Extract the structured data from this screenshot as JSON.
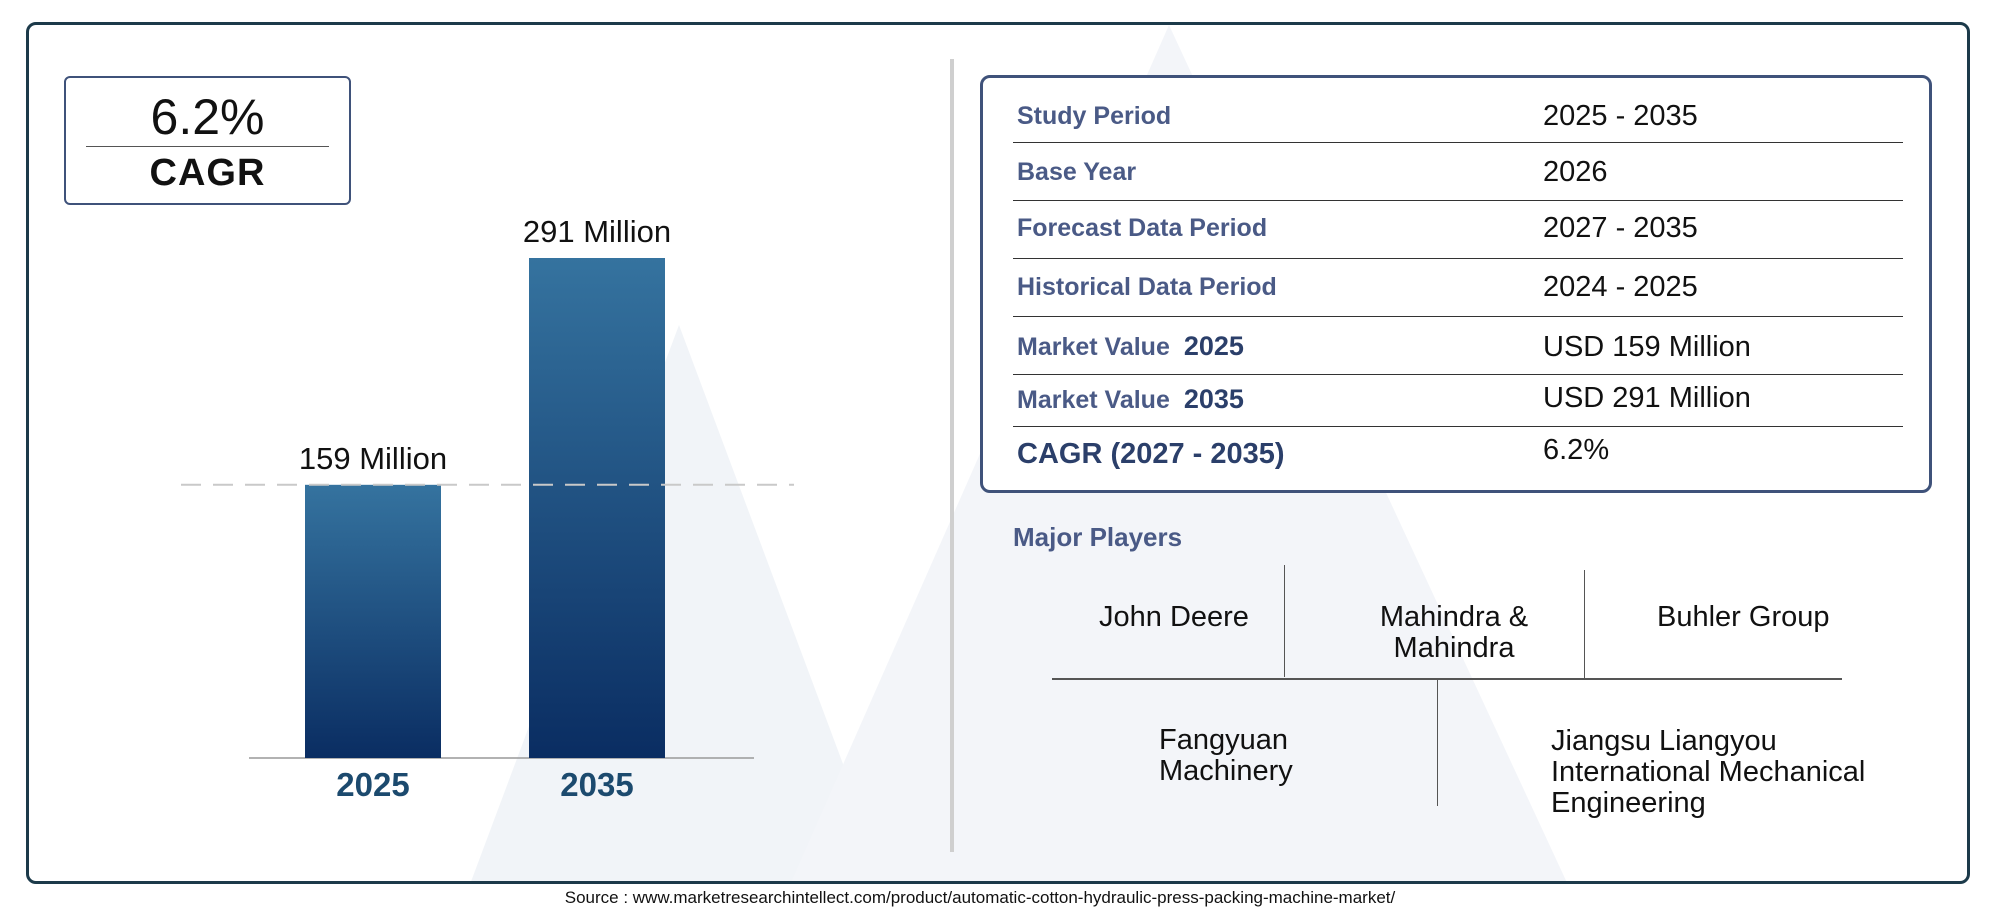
{
  "colors": {
    "border": "#1c3a4a",
    "accent": "#3f527a",
    "bar_top": "#35739f",
    "bar_bottom": "#0a2d62",
    "year_label": "#1c4a6e"
  },
  "cagr": {
    "value": "6.2%",
    "label": "CAGR"
  },
  "chart_data": {
    "type": "bar",
    "categories": [
      "2025",
      "2035"
    ],
    "values": [
      159,
      291
    ],
    "value_labels": [
      "159 Million",
      "291 Million"
    ],
    "reference_line": 159,
    "ylim": [
      0,
      291
    ],
    "title": "",
    "xlabel": "",
    "ylabel": ""
  },
  "info_table": [
    {
      "label": "Study Period",
      "value": "2025 - 2035"
    },
    {
      "label": "Base Year",
      "value": "2026"
    },
    {
      "label": "Forecast Data Period",
      "value": "2027 - 2035"
    },
    {
      "label": "Historical Data Period",
      "value": "2024 - 2025"
    },
    {
      "label": "Market Value",
      "year": "2025",
      "value": "USD 159 Million"
    },
    {
      "label": "Market Value",
      "year": "2035",
      "value": "USD 291 Million"
    },
    {
      "label": "CAGR (2027 - 2035)",
      "value": "6.2%"
    }
  ],
  "players": {
    "title": "Major Players",
    "names": [
      "John Deere",
      "Mahindra & Mahindra",
      "Buhler Group",
      "Fangyuan Machinery",
      "Jiangsu Liangyou International Mechanical Engineering"
    ]
  },
  "source": "Source : www.marketresearchintellect.com/product/automatic-cotton-hydraulic-press-packing-machine-market/"
}
